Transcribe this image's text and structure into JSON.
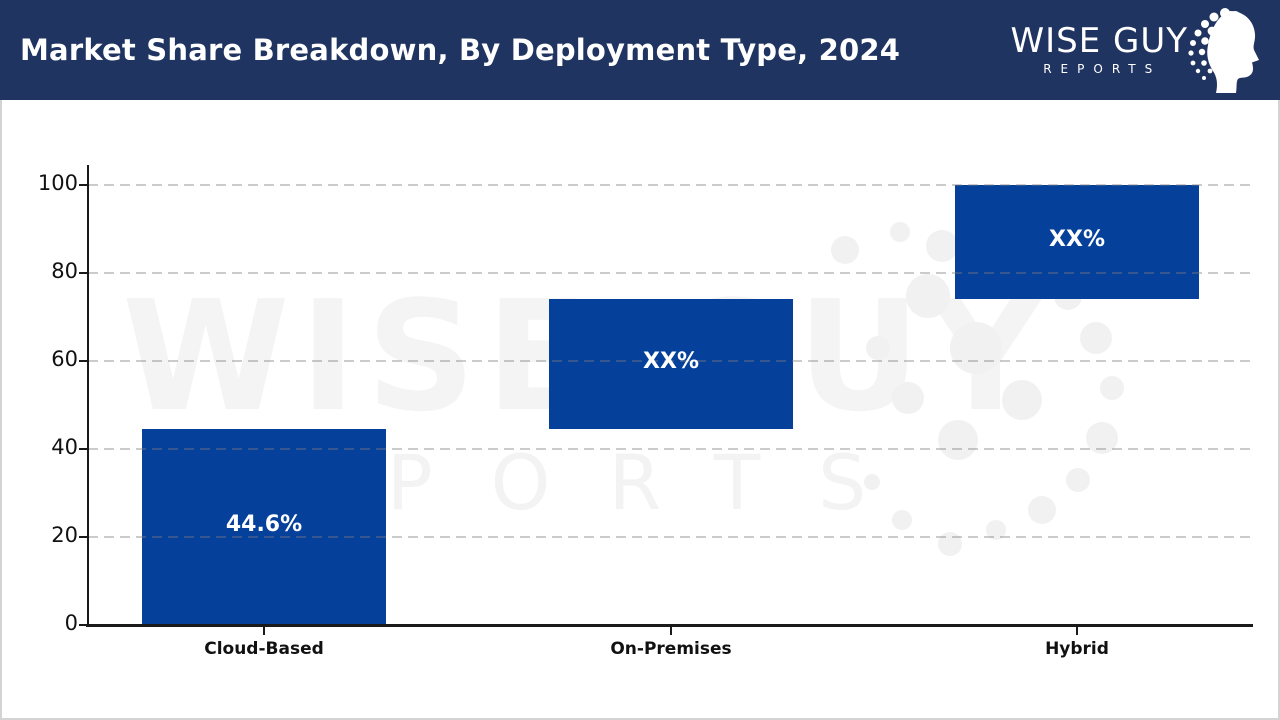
{
  "header": {
    "title": "Market Share Breakdown, By Deployment Type, 2024"
  },
  "logo": {
    "name": "WISE GUY",
    "subtitle": "REPORTS"
  },
  "watermark": {
    "line1": "WISE GUY",
    "line2": "REPORTS"
  },
  "colors": {
    "header_background": "#1F3461",
    "bar": "#05409A",
    "bar_label": "#FFFFFF",
    "gridline": "#CFCFCF",
    "axis": "#1A1A1A",
    "watermark": "#F4F4F4"
  },
  "chart_data": {
    "type": "bar",
    "subtype": "floating-segment-waterfall",
    "title": "Market Share Breakdown, By Deployment Type, 2024",
    "categories": [
      "Cloud-Based",
      "On-Premises",
      "Hybrid"
    ],
    "segments": [
      {
        "category": "Cloud-Based",
        "start": 0,
        "end": 44.6,
        "label": "44.6%"
      },
      {
        "category": "On-Premises",
        "start": 44.6,
        "end": 74.1,
        "label": "XX%"
      },
      {
        "category": "Hybrid",
        "start": 74.1,
        "end": 100,
        "label": "XX%"
      }
    ],
    "xlabel": "",
    "ylabel": "",
    "ylim": [
      0,
      100
    ],
    "yticks": [
      0,
      20,
      40,
      60,
      80,
      100
    ],
    "grid": "horizontal-dashed",
    "legend": "none",
    "bar_color": "#05409A"
  }
}
